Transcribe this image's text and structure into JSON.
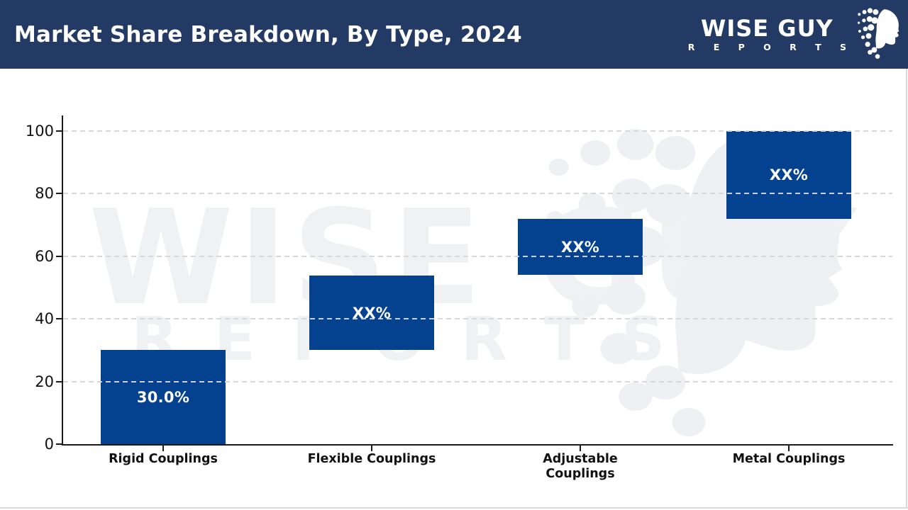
{
  "header": {
    "title": "Market Share Breakdown, By Type, 2024",
    "logo": {
      "line1": "WISE GUY",
      "line2": "R E P O R T S"
    }
  },
  "watermark": {
    "line1": "WISE GUY",
    "line2": "R E P O R T S"
  },
  "colors": {
    "header_bg": "#223A64",
    "bar_blue": "#04428F",
    "grid_gray": "#d6d6d6",
    "axis_black": "#1a1a1a",
    "watermark_gray": "#f0f1f3",
    "label_white": "#ffffff"
  },
  "chart_data": {
    "type": "bar",
    "subtype": "waterfall",
    "title": "Market Share Breakdown, By Type, 2024",
    "categories": [
      "Rigid Couplings",
      "Flexible Couplings",
      "Adjustable\nCouplings",
      "Metal Couplings"
    ],
    "bars": [
      {
        "label": "30.0%",
        "start": 0,
        "end": 30
      },
      {
        "label": "XX%",
        "start": 30,
        "end": 53.8
      },
      {
        "label": "XX%",
        "start": 54,
        "end": 71.9
      },
      {
        "label": "XX%",
        "start": 72,
        "end": 100
      }
    ],
    "yticks": [
      0,
      20,
      40,
      60,
      80,
      100
    ],
    "ylim": [
      0,
      105
    ],
    "xlabel": "",
    "ylabel": "",
    "grid": "horizontal-dashed-over-bars",
    "legend": "none"
  }
}
